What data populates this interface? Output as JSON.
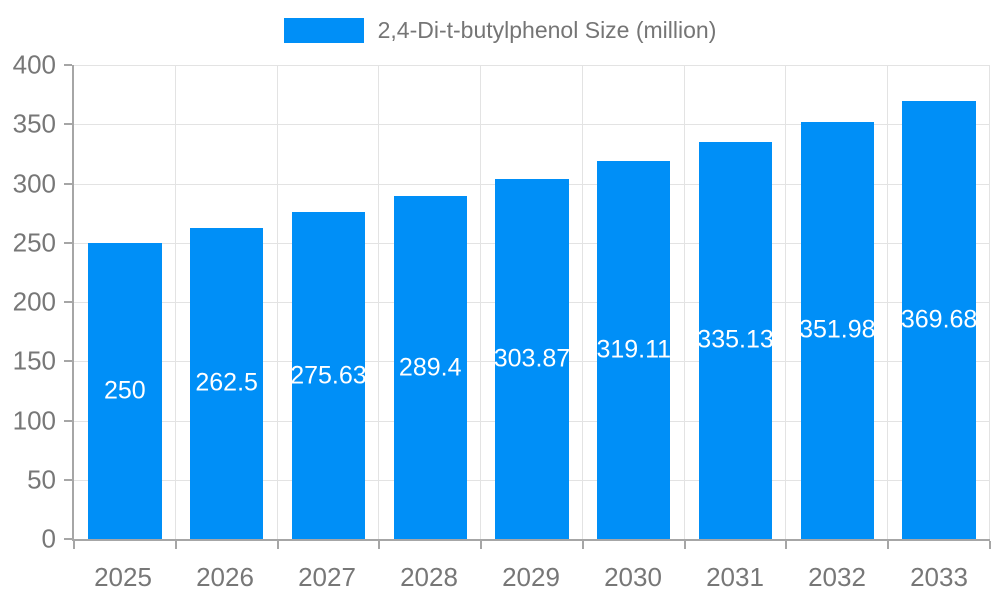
{
  "chart_data": {
    "type": "bar",
    "title": "",
    "series_name": "2,4-Di-t-butylphenol Size (million)",
    "categories": [
      "2025",
      "2026",
      "2027",
      "2028",
      "2029",
      "2030",
      "2031",
      "2032",
      "2033"
    ],
    "values": [
      250,
      262.5,
      275.63,
      289.4,
      303.87,
      319.11,
      335.13,
      351.98,
      369.68
    ],
    "value_labels": [
      "250",
      "262.5",
      "275.63",
      "289.4",
      "303.87",
      "319.11",
      "335.13",
      "351.98",
      "369.68"
    ],
    "xlabel": "",
    "ylabel": "",
    "ylim": [
      0,
      400
    ],
    "yticks": [
      0,
      50,
      100,
      150,
      200,
      250,
      300,
      350,
      400
    ],
    "grid": true,
    "legend_position": "top",
    "bar_label_position": "inside-center"
  },
  "colors": {
    "bar": "#008FF7",
    "grid": "#E3E3E3",
    "axis": "#A6A6A6",
    "tick_text": "#777777",
    "legend_text": "#757575",
    "value_text": "#FFFFFF",
    "background": "#FFFFFF"
  }
}
